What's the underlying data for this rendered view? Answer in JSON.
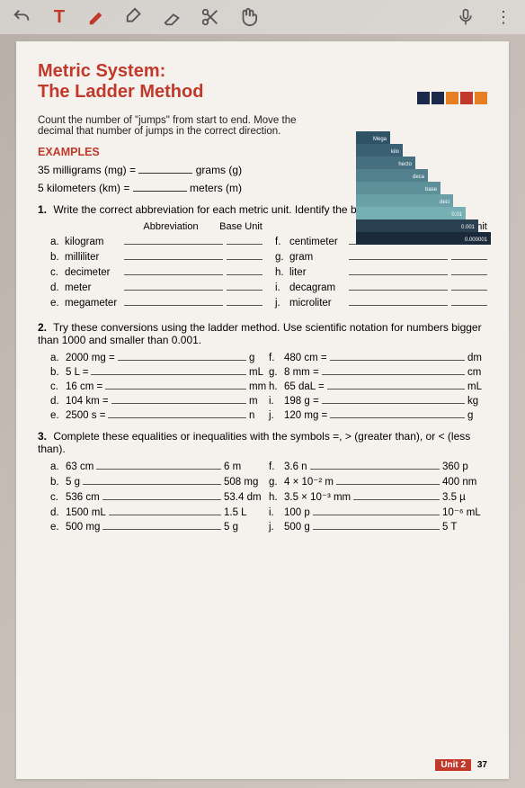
{
  "title_line1": "Metric System:",
  "title_line2": "The Ladder Method",
  "squares": [
    "#1a2a4a",
    "#1a2a4a",
    "#e67e22",
    "#c0392b",
    "#e67e22"
  ],
  "intro": "Count the number of \"jumps\" from start to end. Move the decimal that number of jumps in the correct direction.",
  "examples_hd": "EXAMPLES",
  "ex1_left": "35 milligrams (mg) =",
  "ex1_right": "grams (g)",
  "ex2_left": "5 kilometers (km) =",
  "ex2_right": "meters (m)",
  "q1_text": "Write the correct abbreviation for each metric unit. Identify the base unit in each.",
  "hdr_abbrev": "Abbreviation",
  "hdr_base": "Base Unit",
  "units_left": [
    {
      "lt": "a.",
      "lbl": "kilogram"
    },
    {
      "lt": "b.",
      "lbl": "milliliter"
    },
    {
      "lt": "c.",
      "lbl": "decimeter"
    },
    {
      "lt": "d.",
      "lbl": "meter"
    },
    {
      "lt": "e.",
      "lbl": "megameter"
    }
  ],
  "units_right": [
    {
      "lt": "f.",
      "lbl": "centimeter"
    },
    {
      "lt": "g.",
      "lbl": "gram"
    },
    {
      "lt": "h.",
      "lbl": "liter"
    },
    {
      "lt": "i.",
      "lbl": "decagram"
    },
    {
      "lt": "j.",
      "lbl": "microliter"
    }
  ],
  "q2_text": "Try these conversions using the ladder method. Use scientific notation for numbers bigger than 1000 and smaller than 0.001.",
  "conv": [
    {
      "ll": "a.",
      "lq": "2000 mg =",
      "lu": "g",
      "rl": "f.",
      "rq": "480 cm =",
      "ru": "dm"
    },
    {
      "ll": "b.",
      "lq": "5 L =",
      "lu": "mL",
      "rl": "g.",
      "rq": "8 mm =",
      "ru": "cm"
    },
    {
      "ll": "c.",
      "lq": "16 cm =",
      "lu": "mm",
      "rl": "h.",
      "rq": "65 daL =",
      "ru": "mL"
    },
    {
      "ll": "d.",
      "lq": "104 km =",
      "lu": "m",
      "rl": "i.",
      "rq": "198 g =",
      "ru": "kg"
    },
    {
      "ll": "e.",
      "lq": "2500 s =",
      "lu": "n",
      "rl": "j.",
      "rq": "120 mg =",
      "ru": "g"
    }
  ],
  "q3_text": "Complete these equalities or inequalities with the symbols =, > (greater than), or < (less than).",
  "ineq": [
    {
      "ll": "a.",
      "lq": "63 cm",
      "lu": "6 m",
      "rl": "f.",
      "rq": "3.6 n",
      "ru": "360 p"
    },
    {
      "ll": "b.",
      "lq": "5 g",
      "lu": "508 mg",
      "rl": "g.",
      "rq": "4 × 10⁻² m",
      "ru": "400 nm"
    },
    {
      "ll": "c.",
      "lq": "536 cm",
      "lu": "53.4 dm",
      "rl": "h.",
      "rq": "3.5 × 10⁻³ mm",
      "ru": "3.5 µ"
    },
    {
      "ll": "d.",
      "lq": "1500 mL",
      "lu": "1.5 L",
      "rl": "i.",
      "rq": "100 p",
      "ru": "10⁻⁶ mL"
    },
    {
      "ll": "e.",
      "lq": "500 mg",
      "lu": "5 g",
      "rl": "j.",
      "rq": "500 g",
      "ru": "5 T"
    }
  ],
  "footer_unit": "Unit 2",
  "footer_page": "37",
  "ladder_steps": [
    {
      "color": "#2e5266",
      "label": "Mega"
    },
    {
      "color": "#3a6073",
      "label": "kilo"
    },
    {
      "color": "#467080",
      "label": "hecto"
    },
    {
      "color": "#52808d",
      "label": "deca"
    },
    {
      "color": "#5e909a",
      "label": "base"
    },
    {
      "color": "#6aa0a7",
      "label": "deci"
    },
    {
      "color": "#76b0b4",
      "label": "0.01"
    },
    {
      "color": "#2a4050",
      "label": "0.001"
    },
    {
      "color": "#1a2a3a",
      "label": "0.000001"
    }
  ]
}
